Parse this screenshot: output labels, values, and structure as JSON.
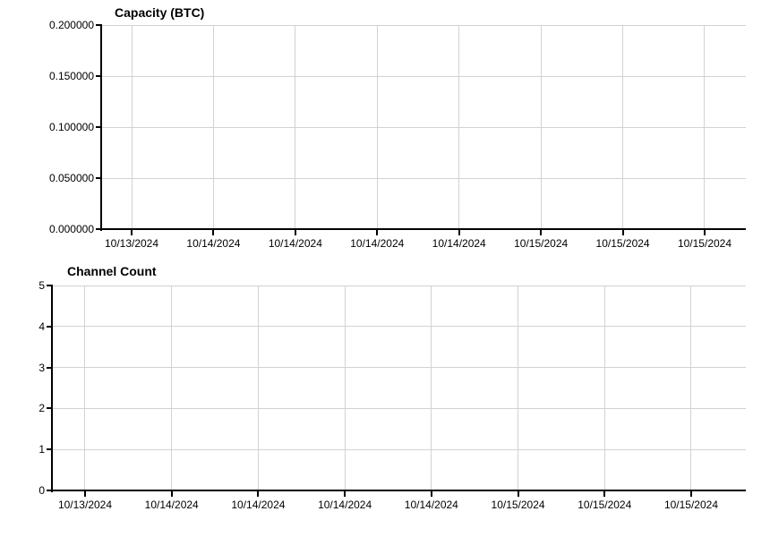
{
  "colors": {
    "background": "#ffffff",
    "axis": "#000000",
    "gridline": "#d2d2d2",
    "text": "#000000"
  },
  "chart_data": [
    {
      "type": "line",
      "title": "Capacity (BTC)",
      "x_tick_labels": [
        "10/13/2024",
        "10/14/2024",
        "10/14/2024",
        "10/14/2024",
        "10/14/2024",
        "10/15/2024",
        "10/15/2024",
        "10/15/2024"
      ],
      "y_tick_labels": [
        "0.200000",
        "0.150000",
        "0.100000",
        "0.050000",
        "0.000000"
      ],
      "y_ticks": [
        0.2,
        0.15,
        0.1,
        0.05,
        0.0
      ],
      "ylim": [
        0.0,
        0.2
      ],
      "xlabel": "",
      "ylabel": "",
      "grid": true,
      "legend": false,
      "series": []
    },
    {
      "type": "line",
      "title": "Channel Count",
      "x_tick_labels": [
        "10/13/2024",
        "10/14/2024",
        "10/14/2024",
        "10/14/2024",
        "10/14/2024",
        "10/15/2024",
        "10/15/2024",
        "10/15/2024"
      ],
      "y_tick_labels": [
        "5",
        "4",
        "3",
        "2",
        "1",
        "0"
      ],
      "y_ticks": [
        5,
        4,
        3,
        2,
        1,
        0
      ],
      "ylim": [
        0,
        5
      ],
      "xlabel": "",
      "ylabel": "",
      "grid": true,
      "legend": false,
      "series": []
    }
  ]
}
